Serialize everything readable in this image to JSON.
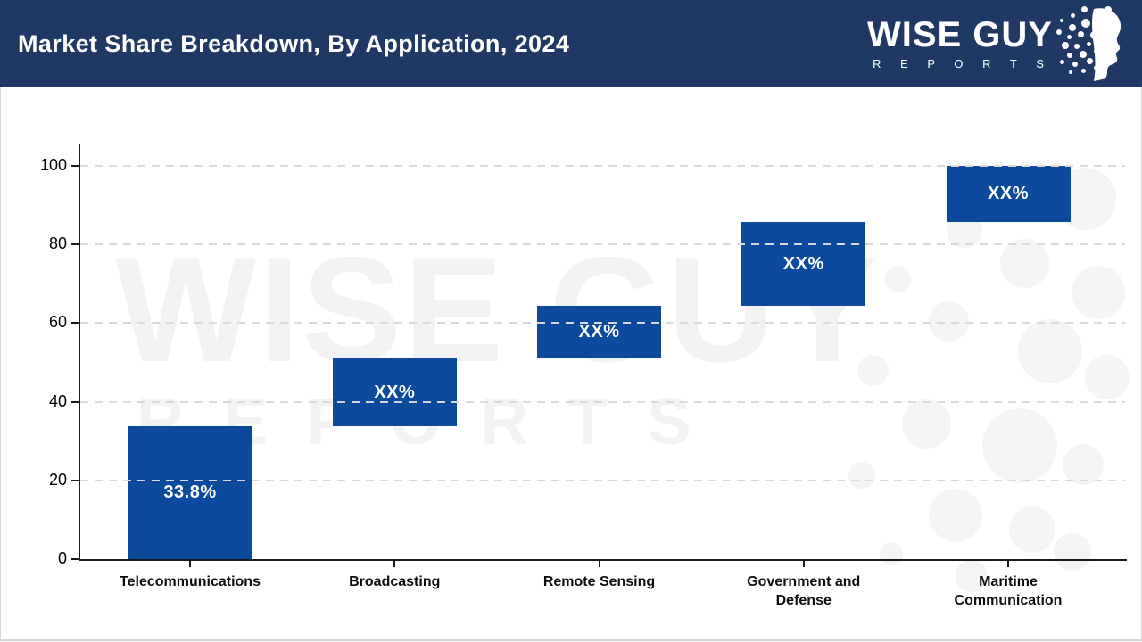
{
  "header": {
    "title": "Market Share Breakdown, By Application, 2024",
    "logo": {
      "line1": "WISE GUY",
      "line2": "R E P O R T S"
    }
  },
  "watermark": {
    "line1": "WISE GUY",
    "line2": "REPORTS"
  },
  "chart_data": {
    "type": "bar",
    "subtype": "waterfall",
    "title": "Market Share Breakdown, By Application, 2024",
    "categories": [
      "Telecommunications",
      "Broadcasting",
      "Remote Sensing",
      "Government and Defense",
      "Maritime Communication"
    ],
    "bars": [
      {
        "category": "Telecommunications",
        "label_lines": [
          "Telecommunications"
        ],
        "start": 0,
        "end": 33.8,
        "value_label": "33.8%"
      },
      {
        "category": "Broadcasting",
        "label_lines": [
          "Broadcasting"
        ],
        "start": 33.8,
        "end": 51.0,
        "value_label": "XX%"
      },
      {
        "category": "Remote Sensing",
        "label_lines": [
          "Remote Sensing"
        ],
        "start": 51.0,
        "end": 64.3,
        "value_label": "XX%"
      },
      {
        "category": "Government and Defense",
        "label_lines": [
          "Government and",
          "Defense"
        ],
        "start": 64.3,
        "end": 85.7,
        "value_label": "XX%"
      },
      {
        "category": "Maritime Communication",
        "label_lines": [
          "Maritime",
          "Communication"
        ],
        "start": 85.7,
        "end": 100.0,
        "value_label": "XX%"
      }
    ],
    "xlabel": "",
    "ylabel": "",
    "ylim": [
      0,
      100
    ],
    "yticks": [
      0,
      20,
      40,
      60,
      80,
      100
    ],
    "grid": "horizontal-dashed",
    "legend": "none",
    "bar_color": "#0b4a9c",
    "value_label_color": "#ffffff"
  },
  "colors": {
    "header_bg": "#1f3864",
    "bar": "#0b4a9c",
    "grid": "#d9d9d9",
    "axis": "#1a1a1a",
    "watermark": "#f2f2f2",
    "page_bg": "#ffffff",
    "border": "#d6d6d6"
  }
}
